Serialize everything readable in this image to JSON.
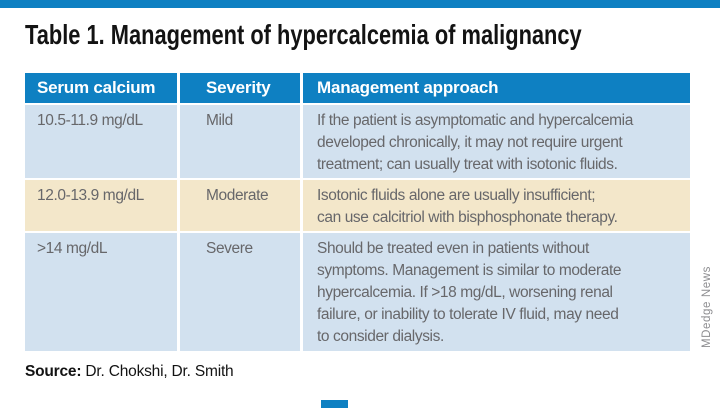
{
  "figure": {
    "title": "Table 1. Management of hypercalcemia of malignancy",
    "watermark": "MDedge News",
    "source_label": "Source:",
    "source_text": " Dr. Chokshi, Dr. Smith"
  },
  "colors": {
    "accent_blue": "#0e80c2",
    "row_light_blue": "#d2e1ef",
    "row_cream": "#f3e7ca",
    "body_text_gray": "#67676a",
    "watermark_gray": "#8d8d90",
    "header_text": "#ffffff",
    "title_text": "#131313"
  },
  "table": {
    "headers": [
      "Serum calcium",
      "Severity",
      "Management approach"
    ],
    "rows": [
      {
        "serum_calcium": "10.5-11.9 mg/dL",
        "severity": "Mild",
        "management": "If the patient is asymptomatic and hypercalcemia\ndeveloped chronically, it may not require urgent\ntreatment; can usually treat with isotonic fluids."
      },
      {
        "serum_calcium": "12.0-13.9 mg/dL",
        "severity": "Moderate",
        "management": "Isotonic fluids alone are usually insufficient;\ncan use calcitriol with bisphosphonate therapy."
      },
      {
        "serum_calcium": ">14 mg/dL",
        "severity": "Severe",
        "management": "Should be treated even in patients without\nsymptoms. Management is similar to moderate\nhypercalcemia. If >18 mg/dL, worsening renal\nfailure, or inability to tolerate IV fluid, may need\nto consider dialysis."
      }
    ]
  },
  "chart_data": {
    "type": "table",
    "title": "Table 1. Management of hypercalcemia of malignancy",
    "columns": [
      "Serum calcium",
      "Severity",
      "Management approach"
    ],
    "rows": [
      [
        "10.5-11.9 mg/dL",
        "Mild",
        "If the patient is asymptomatic and hypercalcemia developed chronically, it may not require urgent treatment; can usually treat with isotonic fluids."
      ],
      [
        "12.0-13.9 mg/dL",
        "Moderate",
        "Isotonic fluids alone are usually insufficient; can use calcitriol with bisphosphonate therapy."
      ],
      [
        ">14 mg/dL",
        "Severe",
        "Should be treated even in patients without symptoms. Management is similar to moderate hypercalcemia. If >18 mg/dL, worsening renal failure, or inability to tolerate IV fluid, may need to consider dialysis."
      ]
    ],
    "source": "Source: Dr. Chokshi, Dr. Smith",
    "branding": "MDedge News"
  }
}
